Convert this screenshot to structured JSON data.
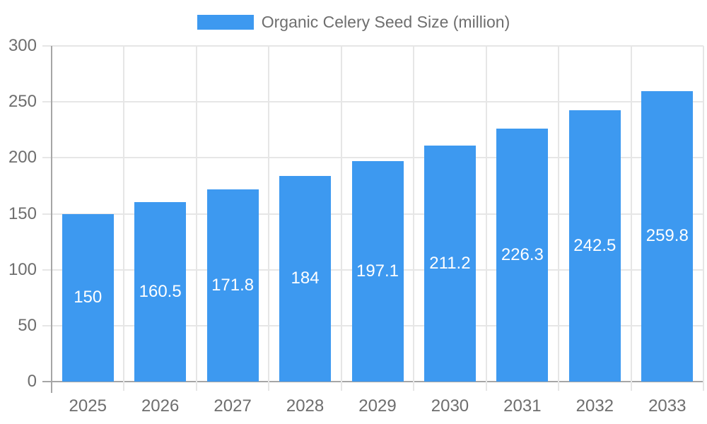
{
  "chart_data": {
    "type": "bar",
    "title": "",
    "legend_label": "Organic Celery Seed Size (million)",
    "legend_position": "top",
    "categories": [
      "2025",
      "2026",
      "2027",
      "2028",
      "2029",
      "2030",
      "2031",
      "2032",
      "2033"
    ],
    "series": [
      {
        "name": "Organic Celery Seed Size (million)",
        "values": [
          150,
          160.5,
          171.8,
          184,
          197.1,
          211.2,
          226.3,
          242.5,
          259.8
        ]
      }
    ],
    "data_labels": [
      "150",
      "160.5",
      "171.8",
      "184",
      "197.1",
      "211.2",
      "226.3",
      "242.5",
      "259.8"
    ],
    "data_labels_position": "inside-center",
    "xlabel": "",
    "ylabel": "",
    "ylim": [
      0,
      300
    ],
    "yticks": [
      0,
      50,
      100,
      150,
      200,
      250,
      300
    ],
    "grid": true,
    "colors": {
      "bar": "#3d99f0",
      "bar_label": "#ffffff",
      "axis_text": "#6e6e6e",
      "grid_line": "#e6e6e6",
      "axis_line": "#a6a6a6",
      "background": "#ffffff"
    }
  }
}
